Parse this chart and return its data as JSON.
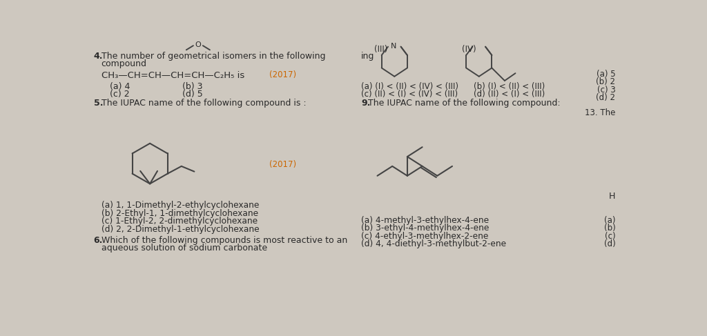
{
  "bg_color": "#cec8bf",
  "text_color": "#2a2a2a",
  "orange_color": "#cc6600",
  "q4_a": "(a) 4",
  "q4_b": "(b) 3",
  "q4_c": "(c) 2",
  "q4_d": "(d) 5",
  "q5_a": "(a) 1, 1-Dimethyl-2-ethylcyclohexane",
  "q5_b": "(b) 2-Ethyl-1, 1-dimethylcyclohexane",
  "q5_c": "(c) 1-Ethyl-2, 2-dimethylcyclohexane",
  "q5_d": "(d) 2, 2-Dimethyl-1-ethylcyclohexane",
  "right_q8_a": "(a) (I) < (II) < (IV) < (III)",
  "right_q8_b": "(b) (I) < (II) < (III)",
  "right_q8_c": "(c) (II) < (I) < (IV) < (III)",
  "right_q8_d": "(d) (II) < (I) < (III)",
  "right_q9_a": "(a) 4-methyl-3-ethylhex-4-ene",
  "right_q9_b": "(b) 3-ethyl-4-methylhex-4-ene",
  "right_q9_c": "(c) 4-ethyl-3-methylhex-2-ene",
  "right_q9_d": "(d) 4, 4-diethyl-3-methylbut-2-ene",
  "right_col_a": "(a) 5",
  "right_col_b": "(b) 2",
  "right_col_c": "(c) 3",
  "right_col_d": "(d) 2",
  "right_col_13": "13. The"
}
